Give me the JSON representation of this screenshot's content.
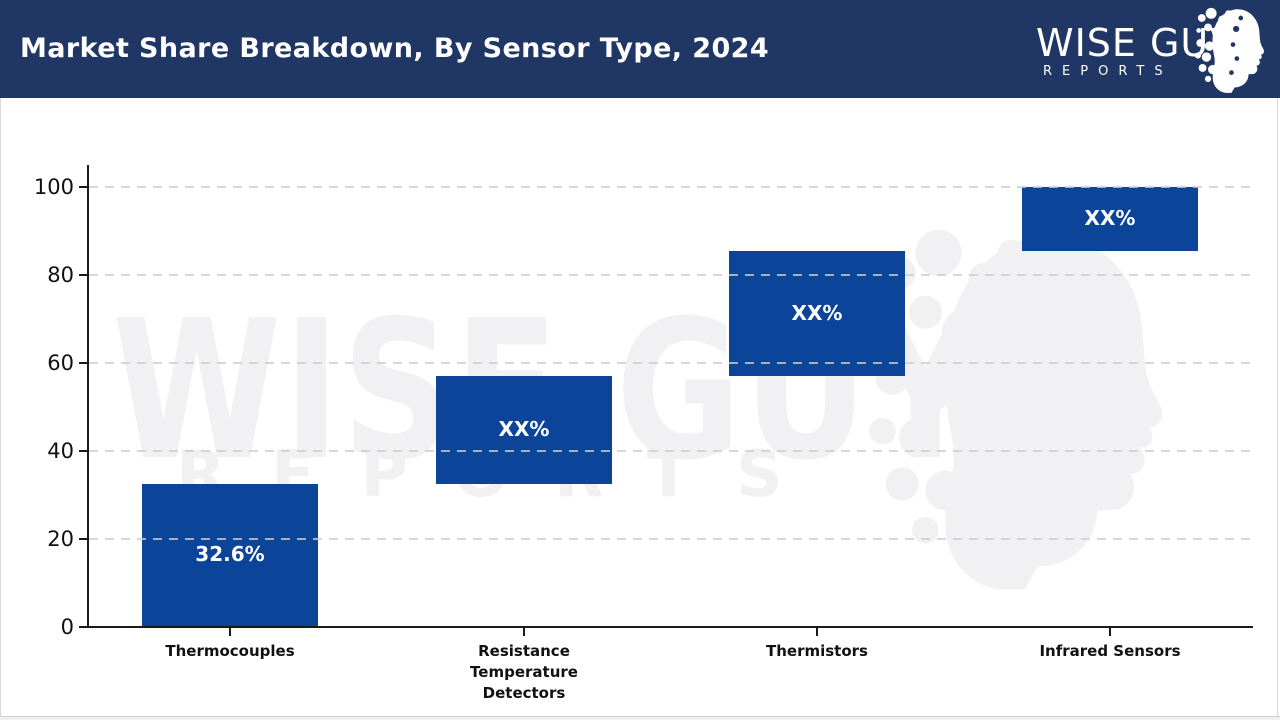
{
  "header": {
    "title": "Market Share Breakdown, By Sensor Type, 2024",
    "logo": {
      "line1": "WISE GUY",
      "line2": "REPORTS"
    }
  },
  "watermark": {
    "line1": "WISE GUY",
    "line2": "REPORTS"
  },
  "colors": {
    "header_navy": "#203664",
    "bar_blue": "#0c4499",
    "bar_label_white": "#ffffff",
    "gridline_gray": "#cdcdcd",
    "axis_black": "#1a1a1a",
    "watermark_gray": "#f1f0f2"
  },
  "chart_data": {
    "type": "bar",
    "subtype": "floating_range_stair",
    "title": "Market Share Breakdown, By Sensor Type, 2024",
    "categories": [
      "Thermocouples",
      "Resistance Temperature Detectors",
      "Thermistors",
      "Infrared Sensors"
    ],
    "segments": [
      {
        "category": "Thermocouples",
        "start": 0,
        "end": 32.6,
        "label": "32.6%"
      },
      {
        "category": "Resistance Temperature Detectors",
        "start": 32.6,
        "end": 57,
        "label": "XX%"
      },
      {
        "category": "Thermistors",
        "start": 57,
        "end": 85.5,
        "label": "XX%"
      },
      {
        "category": "Infrared Sensors",
        "start": 85.5,
        "end": 100,
        "label": "XX%"
      }
    ],
    "ylim": [
      0,
      100
    ],
    "yticks": [
      0,
      20,
      40,
      60,
      80,
      100
    ],
    "xlabel": "",
    "ylabel": "",
    "grid": "horizontal-dashed",
    "legend": false
  }
}
